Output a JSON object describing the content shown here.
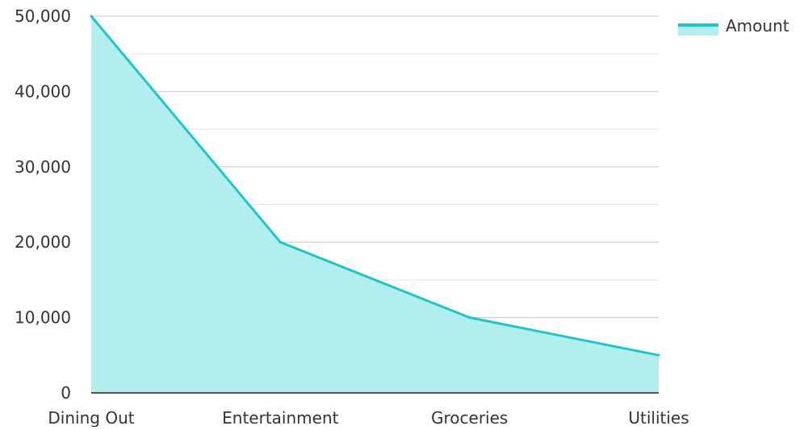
{
  "chart_data": {
    "type": "area",
    "categories": [
      "Dining Out",
      "Entertainment",
      "Groceries",
      "Utilities"
    ],
    "series": [
      {
        "name": "Amount",
        "values": [
          50000,
          20000,
          10000,
          5000
        ]
      }
    ],
    "ylim": [
      0,
      50000
    ],
    "yticks": [
      "0",
      "10,000",
      "20,000",
      "30,000",
      "40,000",
      "50,000"
    ],
    "ytick_values": [
      0,
      10000,
      20000,
      30000,
      40000,
      50000
    ],
    "grid": true,
    "legend_position": "top-right",
    "colors": {
      "line": "#1cc7c9",
      "fill": "#b2eeed",
      "grid_major": "#c8c8c8",
      "grid_minor": "#e2e2e2",
      "axis": "#222222"
    }
  }
}
